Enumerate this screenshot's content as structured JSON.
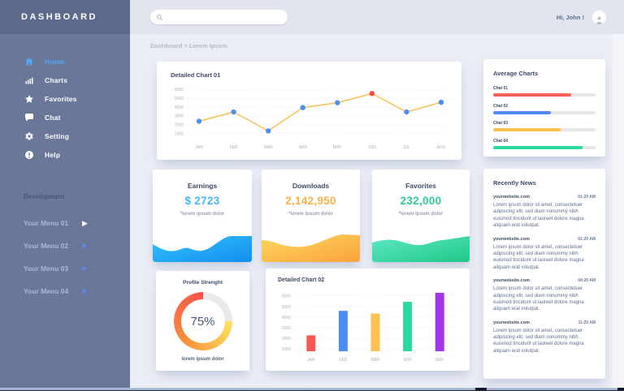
{
  "app": {
    "brand": "DASHBOARD",
    "greeting": "Hi, John !"
  },
  "topbar": {
    "search_placeholder": ""
  },
  "breadcrumb": "Dashboard > Lorem Ipsum",
  "sidebar": {
    "items": [
      {
        "label": "Home",
        "icon": "home-icon",
        "active": true
      },
      {
        "label": "Charts",
        "icon": "bar-chart-icon",
        "active": false
      },
      {
        "label": "Favorites",
        "icon": "star-icon",
        "active": false
      },
      {
        "label": "Chat",
        "icon": "chat-icon",
        "active": false
      },
      {
        "label": "Setting",
        "icon": "gear-icon",
        "active": false
      },
      {
        "label": "Help",
        "icon": "help-icon",
        "active": false
      }
    ],
    "section_label": "Development",
    "dev_items": [
      {
        "label": "Your Menu 01"
      },
      {
        "label": "Your Menu 02"
      },
      {
        "label": "Your Menu 03"
      },
      {
        "label": "Your Menu 04"
      }
    ],
    "arrow_glyph": "▶"
  },
  "cards": {
    "average": {
      "title": "Average Charts",
      "track_color": "#e7e7ea",
      "bars": [
        {
          "label": "Chat 01",
          "percent": 76,
          "color": "#f9605a"
        },
        {
          "label": "Chat 02",
          "percent": 56,
          "color": "#4d8df2"
        },
        {
          "label": "Chat 03",
          "percent": 66,
          "color": "#fcc14e"
        },
        {
          "label": "Chat 04",
          "percent": 87,
          "color": "#2ed9a0"
        }
      ]
    },
    "stats": [
      {
        "title": "Earnings",
        "value": "$ 2723",
        "caption": "*lorem ipsum dolor",
        "value_color": "#45b7f7",
        "wave": [
          "#36c3f9",
          "#118ef0"
        ]
      },
      {
        "title": "Downloads",
        "value": "2,142,950",
        "caption": "*lorem ipsum dolor",
        "value_color": "#fbb143",
        "wave": [
          "#fdd95e",
          "#faa23c"
        ]
      },
      {
        "title": "Favorites",
        "value": "232,000",
        "caption": "*lorem ipsum dolor",
        "value_color": "#2fcb90",
        "wave": [
          "#5fe7c6",
          "#1fc986"
        ]
      }
    ],
    "profile": {
      "title": "Profile Strenght",
      "percent": 75,
      "label": "75%",
      "caption": "lorem ipsum dolor",
      "ring_colors": [
        "#fee45c",
        "#fb8d3c",
        "#f9534b"
      ],
      "track_color": "#e9e9ec"
    },
    "news": {
      "title": "Recently News",
      "items": [
        {
          "source": "yourwebsite.com",
          "time": "01:20 AM",
          "body": "Lorem ipsum dolor sit amet, consectetuer adipiscing elit, sed diam nonummy nibh euismod tincidunt ut laoreet dolore magna aliquam erat volutpat."
        },
        {
          "source": "yourwebsite.com",
          "time": "01:20 AM",
          "body": "Lorem ipsum dolor sit amet, consectetuer adipiscing elit, sed diam nonummy nibh euismod tincidunt ut laoreet dolore magna aliquam erat volutpat."
        },
        {
          "source": "yourwebsite.com",
          "time": "04:20 AM",
          "body": "Lorem ipsum dolor sit amet, consectetuer adipiscing elit, sed diam nonummy nibh euismod tincidunt ut laoreet dolore magna aliquam erat volutpat."
        },
        {
          "source": "yourwebsite.com",
          "time": "11:20 AM",
          "body": "Lorem ipsum dolor sit amet, consectetuer adipiscing elit, sed diam nonummy nibh euismod tincidunt ut laoreet dolore magna aliquam erat volutpat."
        }
      ]
    }
  },
  "chart_data": [
    {
      "id": "detailed-chart-01",
      "type": "line",
      "title": "Detailed Chart 01",
      "x": [
        "JAN",
        "FEB",
        "MAR",
        "APR",
        "MAY",
        "JUN",
        "JUL",
        "AUG"
      ],
      "values": [
        2400,
        3450,
        1300,
        3950,
        4500,
        5550,
        3450,
        4550
      ],
      "yticks": [
        6000,
        5000,
        4000,
        3000,
        2000,
        1000
      ],
      "ylim": [
        500,
        6500
      ],
      "line_color": "#f7c45a",
      "point_color": "#4a90f2",
      "highlight_index": 5,
      "highlight_color": "#f4493e",
      "grid": "dotted",
      "legend": "none"
    },
    {
      "id": "detailed-chart-02",
      "type": "bar",
      "title": "Detailed Chart 02",
      "categories": [
        "JAN",
        "FEB",
        "MAR",
        "APR",
        "MAY"
      ],
      "values": [
        2300,
        4600,
        4350,
        5450,
        6300
      ],
      "colors": [
        "#fa5a55",
        "#4d8df2",
        "#fcc14e",
        "#2ed9a0",
        "#a234ea"
      ],
      "yticks": [
        6000,
        5000,
        4000,
        3000,
        2000,
        1000
      ],
      "ylim": [
        800,
        6600
      ],
      "grid": "dotted",
      "legend": "none"
    }
  ]
}
